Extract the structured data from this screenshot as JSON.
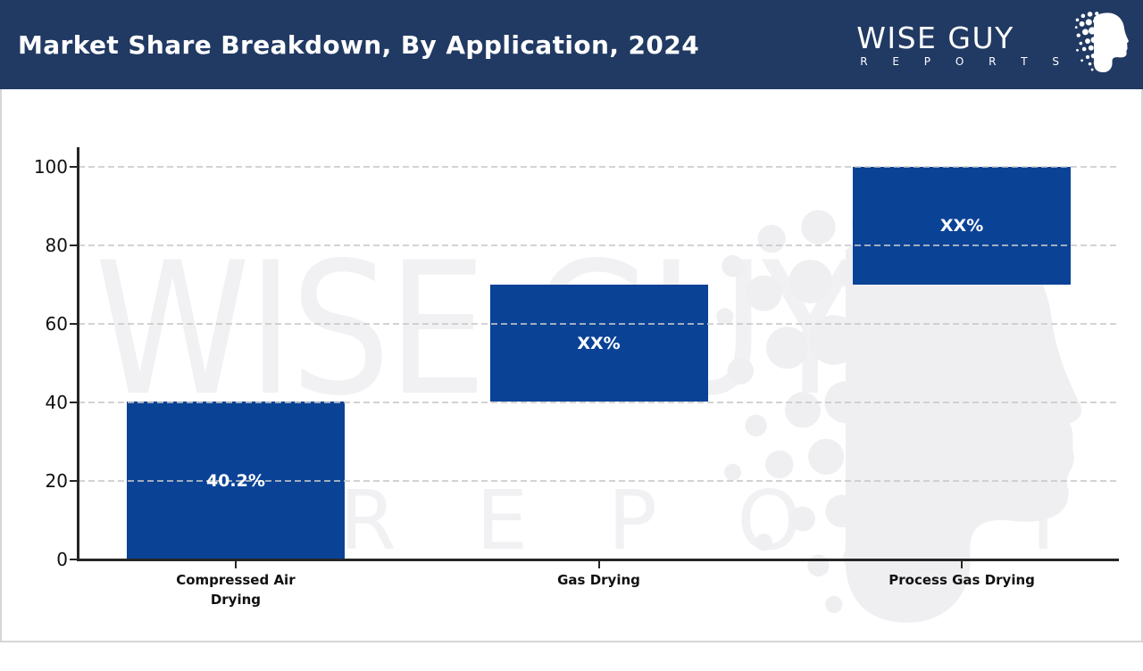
{
  "header": {
    "title": "Market Share Breakdown, By Application, 2024",
    "logo": {
      "brand": "WISE GUY",
      "sub": "R E P O R T S"
    }
  },
  "watermark": {
    "brand": "WISE GUY",
    "sub": "R E P O R T S"
  },
  "chart_data": {
    "type": "bar",
    "subtype": "floating-waterfall",
    "title": "Market Share Breakdown, By Application, 2024",
    "categories": [
      "Compressed Air\nDrying",
      "Gas Drying",
      "Process Gas Drying"
    ],
    "bars": [
      {
        "category": "Compressed Air Drying",
        "start": 0,
        "end": 40.2,
        "label": "40.2%"
      },
      {
        "category": "Gas Drying",
        "start": 40.2,
        "end": 70,
        "label": "XX%"
      },
      {
        "category": "Process Gas Drying",
        "start": 70,
        "end": 100,
        "label": "XX%"
      }
    ],
    "yticks": [
      0,
      20,
      40,
      60,
      80,
      100
    ],
    "ylim": [
      0,
      105
    ],
    "grid": "dashed-horizontal",
    "legend": "none",
    "bar_color": "#0a4296",
    "bar_label_color": "#ffffff"
  },
  "colors": {
    "header_bg": "#213a63",
    "bar": "#0a4296",
    "grid": "#cccccc",
    "axis": "#262626",
    "text": "#111111",
    "watermark": "#f1f1f3",
    "page_border": "#d6d6d6"
  }
}
